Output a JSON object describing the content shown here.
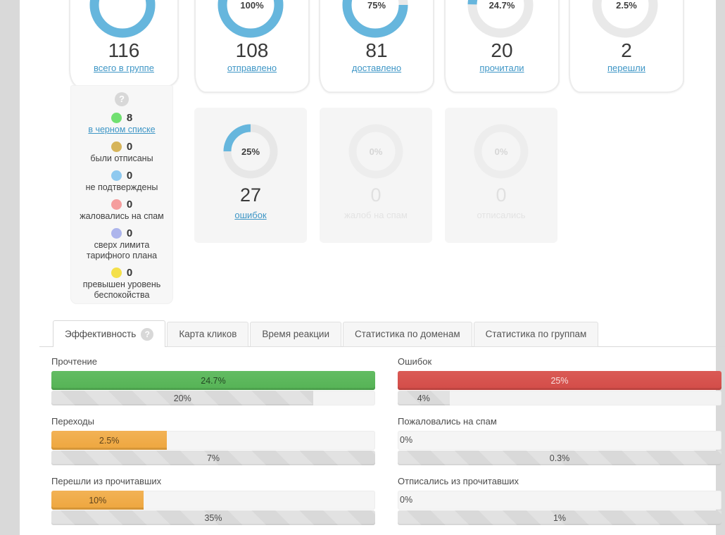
{
  "colors": {
    "page_bg": "#d9d9d9",
    "content_bg": "#ffffff",
    "donut_blue": "#66b6dd",
    "donut_track": "#e9e9e9",
    "donut_track_gray_card": "#e7e7e7",
    "donut_track_faded": "#ededed",
    "link_blue": "#3e96c6",
    "bar_green": "#5cb85c",
    "bar_red": "#d9534f",
    "bar_orange": "#f0ad4e"
  },
  "summary_cards": [
    {
      "percent": 100,
      "percent_label": "",
      "count": "116",
      "caption": "всего в группе"
    },
    {
      "percent": 100,
      "percent_label": "100%",
      "count": "108",
      "caption": "отправлено"
    },
    {
      "percent": 75,
      "percent_label": "75%",
      "count": "81",
      "caption": "доставлено"
    },
    {
      "percent": 24.7,
      "percent_label": "24.7%",
      "count": "20",
      "caption": "прочитали"
    },
    {
      "percent": 2.5,
      "percent_label": "2.5%",
      "count": "2",
      "caption": "перешли"
    }
  ],
  "legend": {
    "help_icon": "?",
    "items": [
      {
        "color": "#71e071",
        "count": "8",
        "label": "в черном списке",
        "link": true
      },
      {
        "color": "#d6b45a",
        "count": "0",
        "label": "были отписаны",
        "link": false
      },
      {
        "color": "#8fc9ef",
        "count": "0",
        "label": "не подтверждены",
        "link": false
      },
      {
        "color": "#f59e9e",
        "count": "0",
        "label": "жаловались на спам",
        "link": false
      },
      {
        "color": "#adb5ec",
        "count": "0",
        "label": "сверх лимита тарифного плана",
        "link": false
      },
      {
        "color": "#f4e04a",
        "count": "0",
        "label": "превышен уровень беспокойства",
        "link": false
      }
    ]
  },
  "secondary_cards": [
    {
      "percent": 25,
      "percent_label": "25%",
      "count": "27",
      "caption": "ошибок",
      "faded": false
    },
    {
      "percent": 0,
      "percent_label": "0%",
      "count": "0",
      "caption": "жалоб на спам",
      "faded": true
    },
    {
      "percent": 0,
      "percent_label": "0%",
      "count": "0",
      "caption": "отписались",
      "faded": true
    }
  ],
  "tabs": [
    {
      "label": "Эффективность",
      "active": true,
      "has_help": true
    },
    {
      "label": "Карта кликов",
      "active": false,
      "has_help": false
    },
    {
      "label": "Время реакции",
      "active": false,
      "has_help": false
    },
    {
      "label": "Статистика по доменам",
      "active": false,
      "has_help": false
    },
    {
      "label": "Статистика по группам",
      "active": false,
      "has_help": false
    }
  ],
  "chart_data": {
    "type": "bar",
    "title": "Эффективность",
    "note": "paired horizontal bars: campaign value vs. average (striped gray); width scaled to max of pair",
    "bars": [
      {
        "title": "Прочтение",
        "value": 24.7,
        "value_label": "24.7%",
        "avg": 20,
        "avg_label": "20%",
        "color": "green"
      },
      {
        "title": "Ошибок",
        "value": 25,
        "value_label": "25%",
        "avg": 4,
        "avg_label": "4%",
        "color": "red"
      },
      {
        "title": "Переходы",
        "value": 2.5,
        "value_label": "2.5%",
        "avg": 7,
        "avg_label": "7%",
        "color": "orange"
      },
      {
        "title": "Пожаловались на спам",
        "value": 0,
        "value_label": "0%",
        "avg": 0.3,
        "avg_label": "0.3%",
        "color": "none"
      },
      {
        "title": "Перешли из прочитавших",
        "value": 10,
        "value_label": "10%",
        "avg": 35,
        "avg_label": "35%",
        "color": "orange"
      },
      {
        "title": "Отписались из прочитавших",
        "value": 0,
        "value_label": "0%",
        "avg": 1,
        "avg_label": "1%",
        "color": "none"
      }
    ]
  }
}
